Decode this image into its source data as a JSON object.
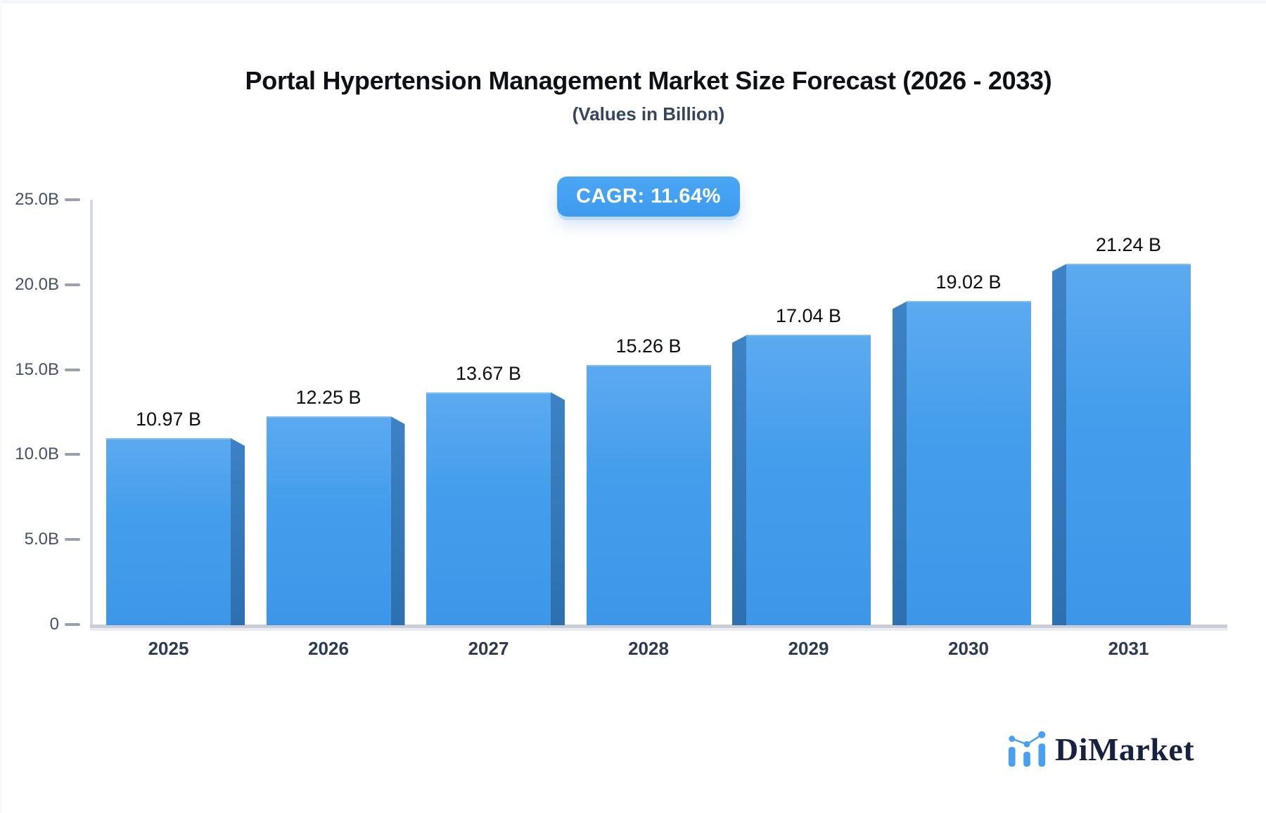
{
  "page": {
    "title": "Portal Hypertension Management Market Size Forecast (2026 - 2033)",
    "subtitle": "(Values in Billion)",
    "cagr_badge": "CAGR: 11.64%"
  },
  "logo": {
    "text": "DiMarket",
    "icon": "mini-bar-chart-icon"
  },
  "colors": {
    "bar_face_top": "#5caaf0",
    "bar_face_bottom": "#3e96e9",
    "bar_side": "#2e74b4",
    "badge_bg": "#3d9af0",
    "axis_line": "#d6d9e2",
    "baseline": "#c9cdd8",
    "tick_text": "#44506a",
    "year_text": "#2c3a52",
    "value_text": "#0a0d12",
    "logo_blue": "#4aa0f0",
    "logo_navy": "#16223f"
  },
  "chart_data": {
    "type": "bar",
    "title": "Portal Hypertension Management Market Size Forecast (2026 - 2033)",
    "subtitle": "(Values in Billion)",
    "annotation": "CAGR: 11.64%",
    "categories": [
      "2025",
      "2026",
      "2027",
      "2028",
      "2029",
      "2030",
      "2031"
    ],
    "values": [
      10.97,
      12.25,
      13.67,
      15.26,
      17.04,
      19.02,
      21.24
    ],
    "value_labels": [
      "10.97 B",
      "12.25 B",
      "13.67 B",
      "15.26 B",
      "17.04 B",
      "19.02 B",
      "21.24 B"
    ],
    "unit": "Billion",
    "ylim": [
      0,
      25
    ],
    "ytick_values": [
      25,
      20,
      15,
      10,
      5,
      0
    ],
    "ytick_labels": [
      "25.0B",
      "20.0B",
      "15.0B",
      "10.0B",
      "5.0B",
      "0"
    ],
    "grid": false,
    "legend": false,
    "style": "3d-perspective-bars"
  }
}
